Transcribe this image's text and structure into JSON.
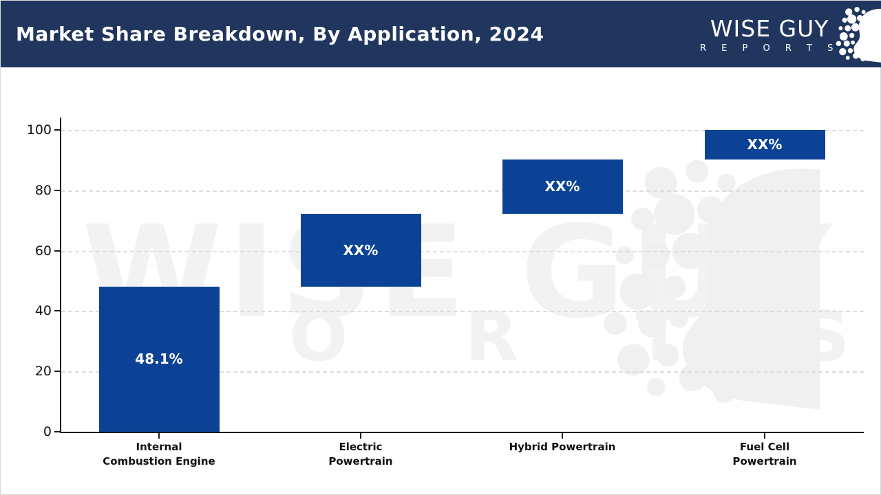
{
  "header": {
    "title": "Market Share Breakdown, By Application, 2024",
    "logo": {
      "line1": "WISE GUY",
      "line2": "R E P O R T S",
      "face_icon": "dotted-head-profile"
    },
    "bg_color": "#21365F"
  },
  "watermark": {
    "line1": "WISE GUY",
    "line2": "P O R T S",
    "face_icon": "dotted-head-profile",
    "color": "#f2f2f2"
  },
  "colors": {
    "bar": "#0B4295",
    "grid": "#DCDCDC",
    "axis": "#1A1A1A",
    "value_label": "#FFFFFF",
    "tick_label": "#111111"
  },
  "chart_data": {
    "type": "bar",
    "subtype": "waterfall",
    "title": "Market Share Breakdown, By Application, 2024",
    "categories": [
      "Internal Combustion Engine",
      "Electric Powertrain",
      "Hybrid Powertrain",
      "Fuel Cell Powertrain"
    ],
    "categories_lines": [
      [
        "Internal",
        "Combustion Engine"
      ],
      [
        "Electric",
        "Powertrain"
      ],
      [
        "Hybrid Powertrain"
      ],
      [
        "Fuel Cell",
        "Powertrain"
      ]
    ],
    "segments": [
      {
        "category": "Internal Combustion Engine",
        "start": 0,
        "end": 48.1,
        "value_label": "48.1%"
      },
      {
        "category": "Electric Powertrain",
        "start": 48.1,
        "end": 72.3,
        "value_label": "XX%"
      },
      {
        "category": "Hybrid Powertrain",
        "start": 72.3,
        "end": 90.3,
        "value_label": "XX%"
      },
      {
        "category": "Fuel Cell Powertrain",
        "start": 90.3,
        "end": 100,
        "value_label": "XX%"
      }
    ],
    "xlabel": "",
    "ylabel": "",
    "ylim": [
      0,
      104
    ],
    "yticks": [
      0,
      20,
      40,
      60,
      80,
      100
    ],
    "grid": "horizontal dashed",
    "legend": "none",
    "note": "Values for Electric/Hybrid/Fuel Cell are masked as XX% in source; start/end estimated from bar pixel extents"
  }
}
